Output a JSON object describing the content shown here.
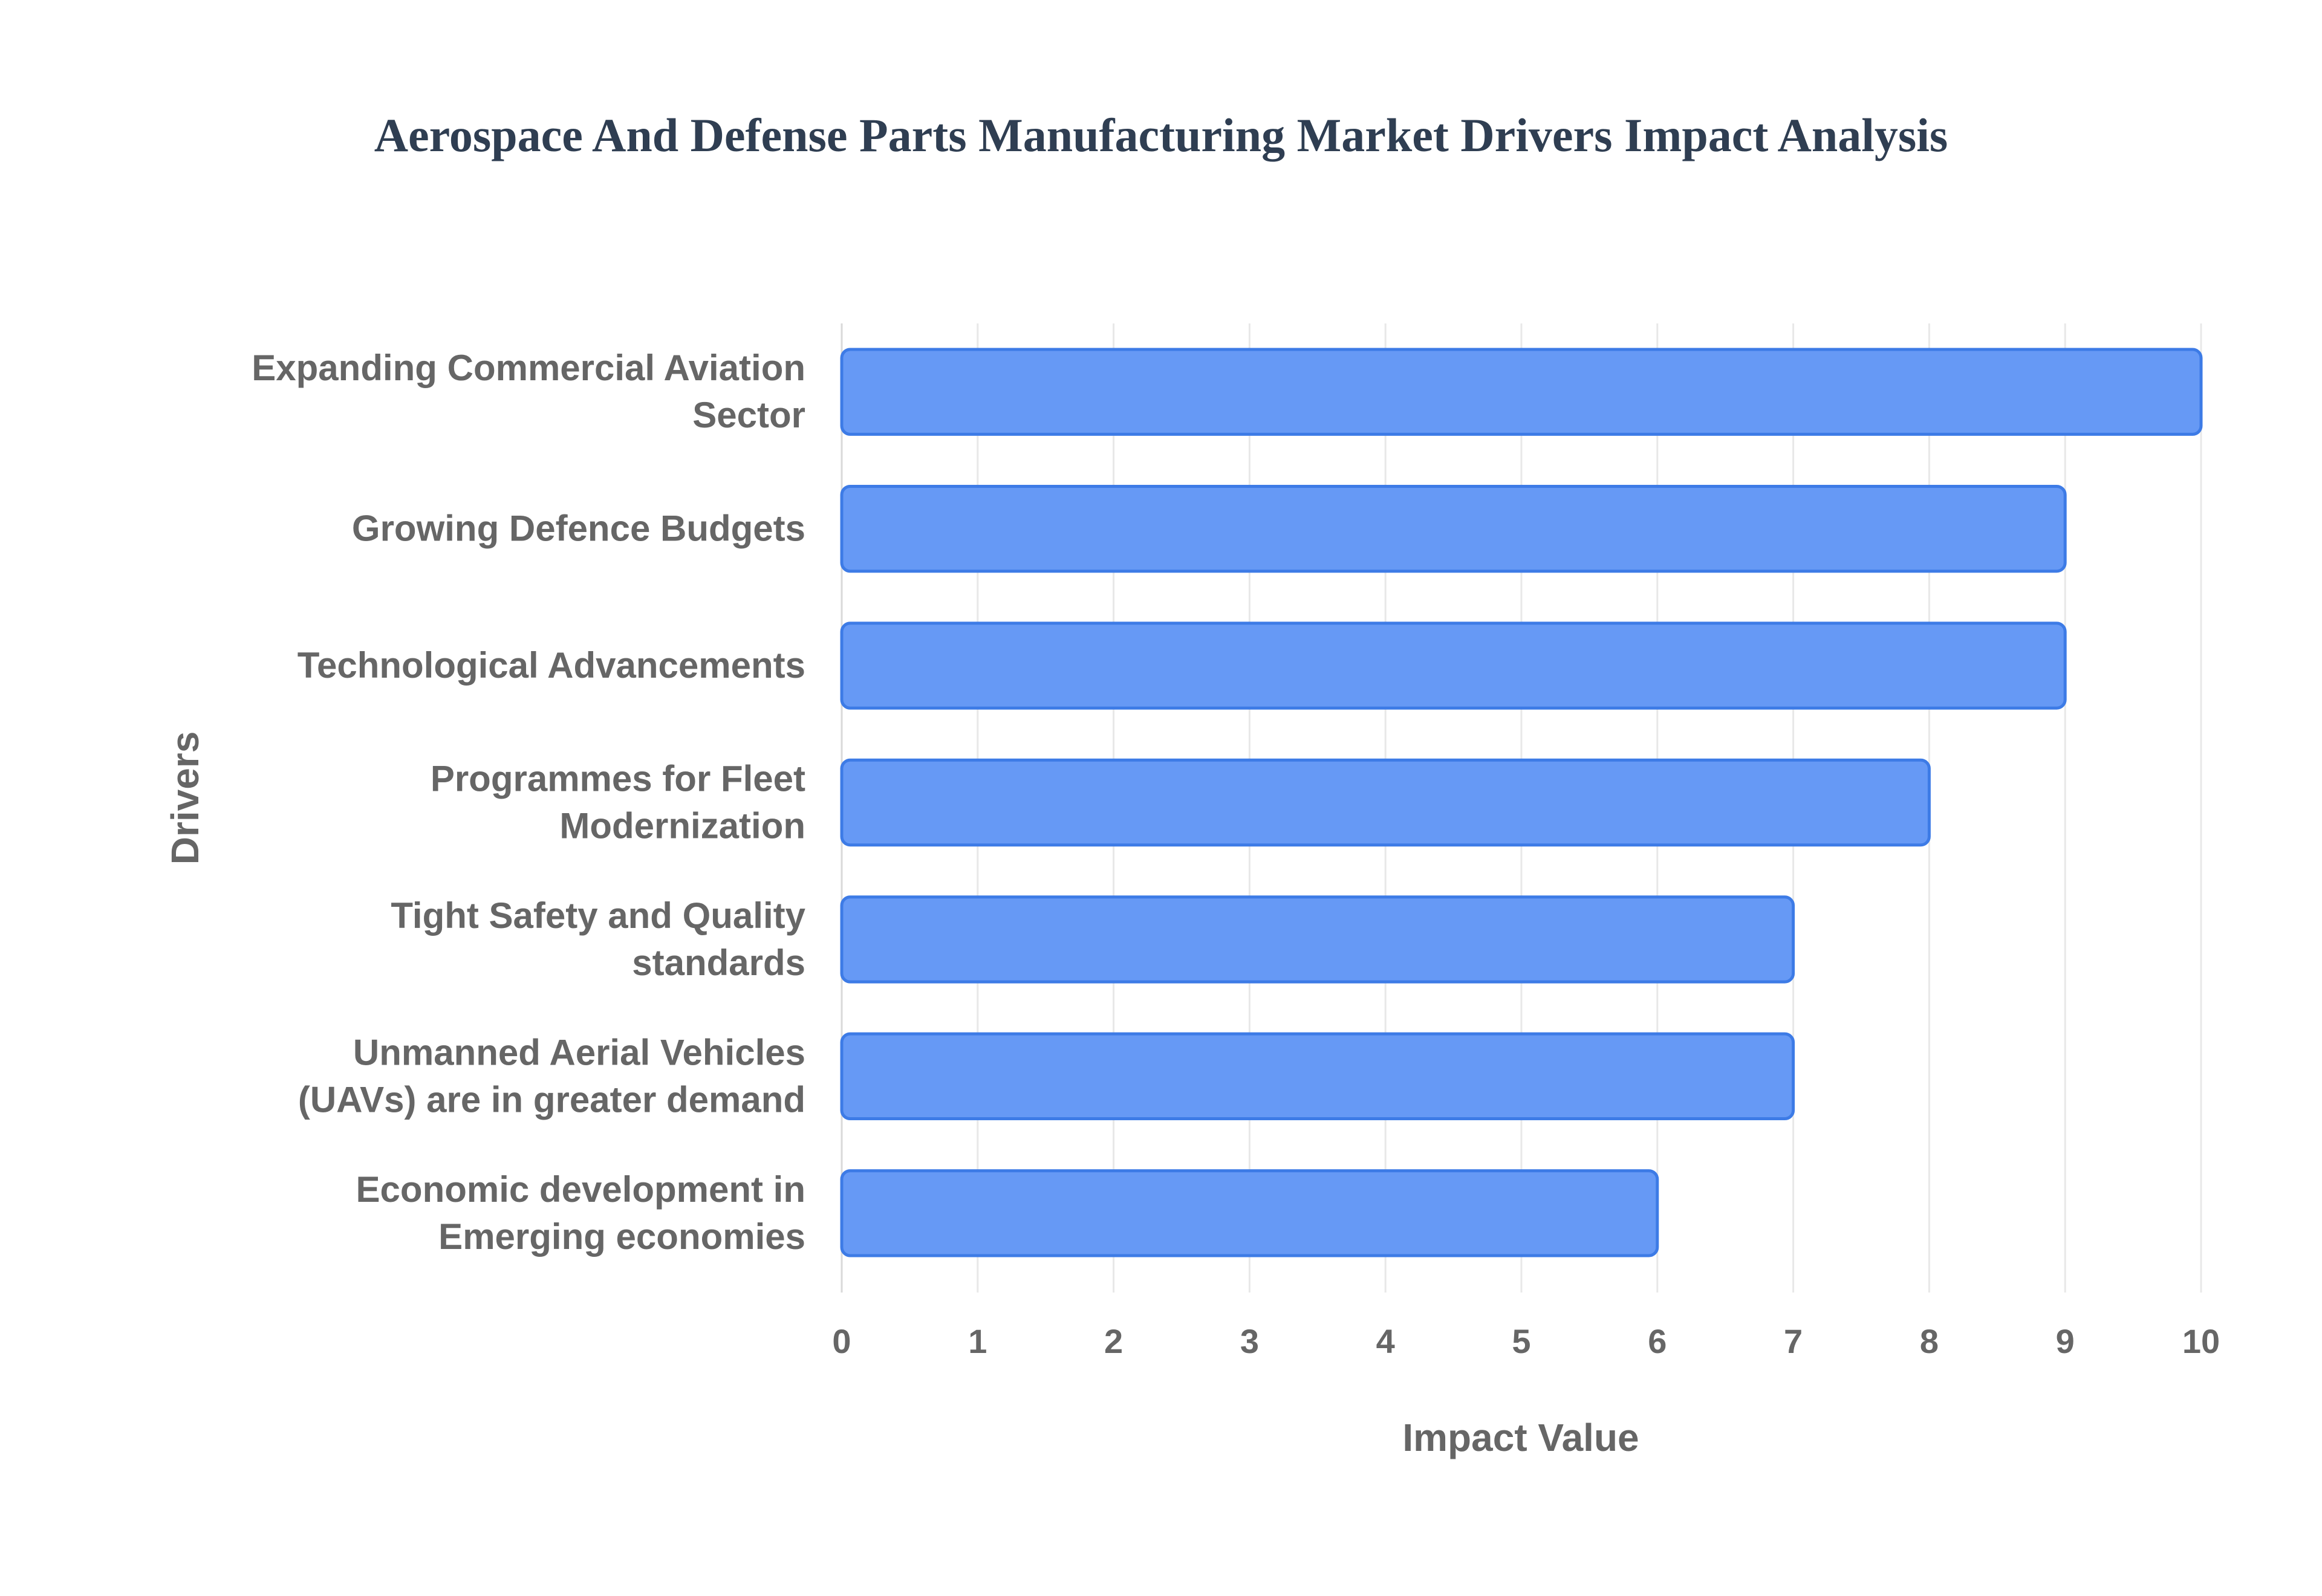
{
  "chart_data": {
    "type": "bar",
    "orientation": "horizontal",
    "title": "Aerospace And Defense Parts Manufacturing Market Drivers Impact Analysis",
    "xlabel": "Impact Value",
    "ylabel": "Drivers",
    "xlim": [
      0,
      10
    ],
    "x_ticks": [
      "0",
      "1",
      "2",
      "3",
      "4",
      "5",
      "6",
      "7",
      "8",
      "9",
      "10"
    ],
    "grid": true,
    "legend": "none",
    "categories": [
      [
        "Expanding Commercial Aviation",
        "Sector"
      ],
      [
        "Growing Defence Budgets"
      ],
      [
        "Technological Advancements"
      ],
      [
        "Programmes for Fleet",
        "Modernization"
      ],
      [
        "Tight Safety and Quality",
        "standards"
      ],
      [
        "Unmanned Aerial Vehicles",
        "(UAVs) are in greater demand"
      ],
      [
        "Economic development in",
        "Emerging economies"
      ]
    ],
    "values": [
      10,
      9,
      9,
      8,
      7,
      7,
      6
    ],
    "colors": {
      "bar_fill": "#6699f5",
      "bar_stroke": "#3d7be6",
      "title": "#2f3e52",
      "text": "#666666",
      "grid": "#e8e8e8"
    }
  }
}
